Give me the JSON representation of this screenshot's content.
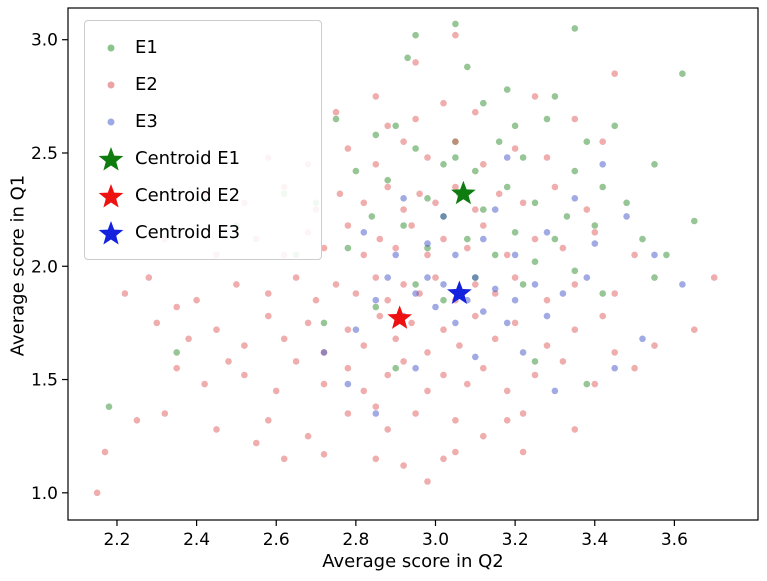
{
  "chart_data": {
    "type": "scatter",
    "title": "",
    "xlabel": "Average score in Q2",
    "ylabel": "Average score in Q1",
    "xlim": [
      2.077,
      3.81
    ],
    "ylim": [
      0.88,
      3.14
    ],
    "grid": false,
    "xticks": [
      2.2,
      2.4,
      2.6,
      2.8,
      3.0,
      3.2,
      3.4,
      3.6
    ],
    "xtick_labels": [
      "2.2",
      "2.4",
      "2.6",
      "2.8",
      "3.0",
      "3.2",
      "3.4",
      "3.6"
    ],
    "yticks": [
      1.0,
      1.5,
      2.0,
      2.5,
      3.0
    ],
    "ytick_labels": [
      "1.0",
      "1.5",
      "2.0",
      "2.5",
      "3.0"
    ],
    "legend": {
      "position": "upper left",
      "entries": [
        {
          "label": "E1",
          "marker": "dot",
          "color": "#3c9d3c"
        },
        {
          "label": "E2",
          "marker": "dot",
          "color": "#e06666"
        },
        {
          "label": "E3",
          "marker": "dot",
          "color": "#5b6fd6"
        },
        {
          "label": "Centroid E1",
          "marker": "star",
          "color": "#0f7c0f"
        },
        {
          "label": "Centroid E2",
          "marker": "star",
          "color": "#ee1111"
        },
        {
          "label": "Centroid E3",
          "marker": "star",
          "color": "#1522dd"
        }
      ]
    },
    "series": [
      {
        "name": "E1",
        "marker": "dot",
        "color": "#2e8b2e",
        "opacity": 0.5,
        "points": [
          [
            3.05,
            3.07
          ],
          [
            2.95,
            3.02
          ],
          [
            3.35,
            3.05
          ],
          [
            2.93,
            2.92
          ],
          [
            3.62,
            2.85
          ],
          [
            3.08,
            2.88
          ],
          [
            3.18,
            2.78
          ],
          [
            2.75,
            2.65
          ],
          [
            3.2,
            2.62
          ],
          [
            3.28,
            2.65
          ],
          [
            3.12,
            2.72
          ],
          [
            3.3,
            2.75
          ],
          [
            2.9,
            2.62
          ],
          [
            3.45,
            2.62
          ],
          [
            3.05,
            2.55
          ],
          [
            3.16,
            2.55
          ],
          [
            2.95,
            2.52
          ],
          [
            2.85,
            2.58
          ],
          [
            3.38,
            2.55
          ],
          [
            3.55,
            2.45
          ],
          [
            3.05,
            2.48
          ],
          [
            3.02,
            2.45
          ],
          [
            3.1,
            2.42
          ],
          [
            3.22,
            2.48
          ],
          [
            3.35,
            2.42
          ],
          [
            3.42,
            2.35
          ],
          [
            3.18,
            2.35
          ],
          [
            3.06,
            2.32
          ],
          [
            2.98,
            2.3
          ],
          [
            2.88,
            2.38
          ],
          [
            2.8,
            2.42
          ],
          [
            3.25,
            2.28
          ],
          [
            3.33,
            2.22
          ],
          [
            3.48,
            2.28
          ],
          [
            2.62,
            2.32
          ],
          [
            3.02,
            2.22
          ],
          [
            3.12,
            2.25
          ],
          [
            2.92,
            2.18
          ],
          [
            3.2,
            2.15
          ],
          [
            3.3,
            2.12
          ],
          [
            3.4,
            2.18
          ],
          [
            2.84,
            2.22
          ],
          [
            2.7,
            2.28
          ],
          [
            3.08,
            2.12
          ],
          [
            2.98,
            2.08
          ],
          [
            3.15,
            2.05
          ],
          [
            3.25,
            2.02
          ],
          [
            2.5,
            2.18
          ],
          [
            3.65,
            2.2
          ],
          [
            2.65,
            2.05
          ],
          [
            2.78,
            2.08
          ],
          [
            3.52,
            2.12
          ],
          [
            3.58,
            2.05
          ],
          [
            3.35,
            1.98
          ],
          [
            3.1,
            1.95
          ],
          [
            2.95,
            1.92
          ],
          [
            3.22,
            1.92
          ],
          [
            3.42,
            1.88
          ],
          [
            3.02,
            1.85
          ],
          [
            2.85,
            1.82
          ],
          [
            3.55,
            1.95
          ],
          [
            2.72,
            1.75
          ],
          [
            2.9,
            1.55
          ],
          [
            3.25,
            1.58
          ],
          [
            3.38,
            1.48
          ],
          [
            2.35,
            1.62
          ],
          [
            2.18,
            1.38
          ]
        ]
      },
      {
        "name": "E2",
        "marker": "dot",
        "color": "#e05b5b",
        "opacity": 0.5,
        "points": [
          [
            2.15,
            1.0
          ],
          [
            2.17,
            1.18
          ],
          [
            2.62,
            1.15
          ],
          [
            2.72,
            1.17
          ],
          [
            2.85,
            1.15
          ],
          [
            2.92,
            1.12
          ],
          [
            3.02,
            1.15
          ],
          [
            3.05,
            1.18
          ],
          [
            2.98,
            1.05
          ],
          [
            3.22,
            1.18
          ],
          [
            2.55,
            1.22
          ],
          [
            2.32,
            1.35
          ],
          [
            2.45,
            1.28
          ],
          [
            2.58,
            1.32
          ],
          [
            2.68,
            1.25
          ],
          [
            2.78,
            1.35
          ],
          [
            2.88,
            1.28
          ],
          [
            2.95,
            1.35
          ],
          [
            3.05,
            1.32
          ],
          [
            3.12,
            1.25
          ],
          [
            3.22,
            1.35
          ],
          [
            3.35,
            1.28
          ],
          [
            2.85,
            1.38
          ],
          [
            3.18,
            1.32
          ],
          [
            2.25,
            1.32
          ],
          [
            2.35,
            1.55
          ],
          [
            2.42,
            1.48
          ],
          [
            2.52,
            1.52
          ],
          [
            2.6,
            1.45
          ],
          [
            2.65,
            1.58
          ],
          [
            2.72,
            1.48
          ],
          [
            2.78,
            1.55
          ],
          [
            2.82,
            1.45
          ],
          [
            2.88,
            1.52
          ],
          [
            2.92,
            1.58
          ],
          [
            2.98,
            1.45
          ],
          [
            3.02,
            1.52
          ],
          [
            3.08,
            1.48
          ],
          [
            3.12,
            1.55
          ],
          [
            3.18,
            1.45
          ],
          [
            3.25,
            1.52
          ],
          [
            3.32,
            1.58
          ],
          [
            3.4,
            1.48
          ],
          [
            3.5,
            1.55
          ],
          [
            2.48,
            1.58
          ],
          [
            3.45,
            1.62
          ],
          [
            2.22,
            1.88
          ],
          [
            2.3,
            1.75
          ],
          [
            2.38,
            1.68
          ],
          [
            2.45,
            1.72
          ],
          [
            2.52,
            1.65
          ],
          [
            2.58,
            1.78
          ],
          [
            2.62,
            1.68
          ],
          [
            2.68,
            1.75
          ],
          [
            2.72,
            1.62
          ],
          [
            2.78,
            1.72
          ],
          [
            2.82,
            1.65
          ],
          [
            2.86,
            1.78
          ],
          [
            2.9,
            1.68
          ],
          [
            2.94,
            1.75
          ],
          [
            2.98,
            1.62
          ],
          [
            3.02,
            1.72
          ],
          [
            3.06,
            1.65
          ],
          [
            3.1,
            1.78
          ],
          [
            3.15,
            1.68
          ],
          [
            3.2,
            1.75
          ],
          [
            3.28,
            1.65
          ],
          [
            3.35,
            1.72
          ],
          [
            3.42,
            1.78
          ],
          [
            3.55,
            1.65
          ],
          [
            3.65,
            1.72
          ],
          [
            2.28,
            1.95
          ],
          [
            2.4,
            1.85
          ],
          [
            2.5,
            1.92
          ],
          [
            2.58,
            1.88
          ],
          [
            2.65,
            1.95
          ],
          [
            2.7,
            1.85
          ],
          [
            2.75,
            1.92
          ],
          [
            2.8,
            1.88
          ],
          [
            2.85,
            1.95
          ],
          [
            2.88,
            1.85
          ],
          [
            2.92,
            1.92
          ],
          [
            2.96,
            1.88
          ],
          [
            3.0,
            1.95
          ],
          [
            3.05,
            1.85
          ],
          [
            3.1,
            1.92
          ],
          [
            3.15,
            1.88
          ],
          [
            3.2,
            1.95
          ],
          [
            3.28,
            1.85
          ],
          [
            3.35,
            1.92
          ],
          [
            3.45,
            1.88
          ],
          [
            3.7,
            1.95
          ],
          [
            2.35,
            1.82
          ],
          [
            2.45,
            2.05
          ],
          [
            2.55,
            2.12
          ],
          [
            2.62,
            2.05
          ],
          [
            2.68,
            2.15
          ],
          [
            2.72,
            2.08
          ],
          [
            2.78,
            2.18
          ],
          [
            2.82,
            2.05
          ],
          [
            2.86,
            2.12
          ],
          [
            2.9,
            2.08
          ],
          [
            2.94,
            2.18
          ],
          [
            2.98,
            2.05
          ],
          [
            3.02,
            2.12
          ],
          [
            3.08,
            2.08
          ],
          [
            3.12,
            2.18
          ],
          [
            3.18,
            2.05
          ],
          [
            3.25,
            2.12
          ],
          [
            3.32,
            2.08
          ],
          [
            3.4,
            2.15
          ],
          [
            3.5,
            2.05
          ],
          [
            2.32,
            2.12
          ],
          [
            2.52,
            2.28
          ],
          [
            2.62,
            2.35
          ],
          [
            2.7,
            2.25
          ],
          [
            2.76,
            2.32
          ],
          [
            2.82,
            2.28
          ],
          [
            2.88,
            2.35
          ],
          [
            2.92,
            2.25
          ],
          [
            2.96,
            2.32
          ],
          [
            3.0,
            2.28
          ],
          [
            3.05,
            2.35
          ],
          [
            3.1,
            2.25
          ],
          [
            3.16,
            2.32
          ],
          [
            3.22,
            2.28
          ],
          [
            3.3,
            2.35
          ],
          [
            3.38,
            2.25
          ],
          [
            2.42,
            2.32
          ],
          [
            2.68,
            2.45
          ],
          [
            2.78,
            2.52
          ],
          [
            2.85,
            2.45
          ],
          [
            2.92,
            2.55
          ],
          [
            2.98,
            2.48
          ],
          [
            3.05,
            2.55
          ],
          [
            3.12,
            2.45
          ],
          [
            3.2,
            2.52
          ],
          [
            3.28,
            2.48
          ],
          [
            3.42,
            2.55
          ],
          [
            2.58,
            2.48
          ],
          [
            2.75,
            2.68
          ],
          [
            2.85,
            2.75
          ],
          [
            2.95,
            2.65
          ],
          [
            3.02,
            2.72
          ],
          [
            3.1,
            2.68
          ],
          [
            3.35,
            2.65
          ],
          [
            3.45,
            2.85
          ],
          [
            2.95,
            2.9
          ],
          [
            3.05,
            3.02
          ],
          [
            2.88,
            2.62
          ],
          [
            3.25,
            2.75
          ]
        ]
      },
      {
        "name": "E3",
        "marker": "dot",
        "color": "#4355c8",
        "opacity": 0.5,
        "points": [
          [
            2.72,
            1.62
          ],
          [
            2.8,
            1.72
          ],
          [
            2.85,
            1.85
          ],
          [
            2.88,
            1.95
          ],
          [
            2.92,
            1.78
          ],
          [
            2.95,
            1.88
          ],
          [
            2.98,
            1.95
          ],
          [
            3.0,
            1.82
          ],
          [
            3.02,
            1.92
          ],
          [
            3.05,
            1.75
          ],
          [
            3.08,
            1.85
          ],
          [
            3.1,
            1.95
          ],
          [
            3.12,
            1.8
          ],
          [
            3.15,
            1.9
          ],
          [
            3.18,
            1.75
          ],
          [
            3.2,
            1.85
          ],
          [
            3.25,
            1.92
          ],
          [
            3.28,
            1.78
          ],
          [
            3.32,
            1.88
          ],
          [
            3.38,
            1.95
          ],
          [
            2.9,
            2.05
          ],
          [
            2.98,
            2.1
          ],
          [
            3.05,
            2.05
          ],
          [
            3.12,
            2.12
          ],
          [
            3.2,
            2.05
          ],
          [
            3.28,
            2.15
          ],
          [
            3.4,
            2.1
          ],
          [
            2.82,
            2.15
          ],
          [
            3.48,
            2.22
          ],
          [
            3.35,
            2.3
          ],
          [
            3.15,
            2.25
          ],
          [
            3.02,
            2.22
          ],
          [
            2.92,
            2.3
          ],
          [
            3.52,
            1.68
          ],
          [
            3.45,
            1.55
          ],
          [
            3.1,
            1.6
          ],
          [
            2.95,
            1.55
          ],
          [
            2.78,
            1.48
          ],
          [
            3.22,
            1.62
          ],
          [
            3.3,
            1.45
          ],
          [
            3.42,
            2.45
          ],
          [
            3.18,
            2.48
          ],
          [
            2.85,
            1.35
          ],
          [
            3.55,
            2.05
          ],
          [
            3.62,
            1.92
          ]
        ]
      }
    ],
    "centroids": [
      {
        "name": "Centroid E1",
        "color": "#0f7c0f",
        "point": [
          3.07,
          2.32
        ]
      },
      {
        "name": "Centroid E2",
        "color": "#ee1111",
        "point": [
          2.91,
          1.77
        ]
      },
      {
        "name": "Centroid E3",
        "color": "#1522dd",
        "point": [
          3.06,
          1.88
        ]
      }
    ]
  }
}
